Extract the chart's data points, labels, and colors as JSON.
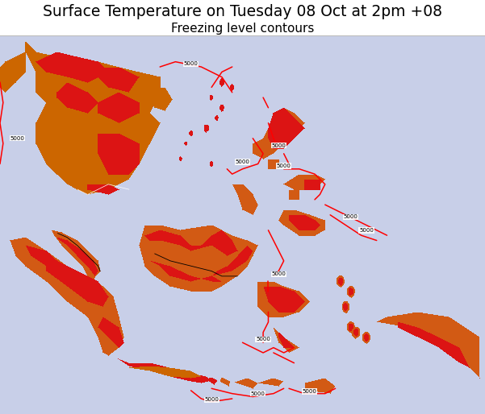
{
  "title": "Surface Temperature on Tuesday 08 Oct at 2pm +08",
  "subtitle": "Freezing level contours",
  "title_fontsize": 13.5,
  "subtitle_fontsize": 11,
  "header_bg": "#ffffff",
  "header_border": "#cccccc",
  "fig_width": 6.01,
  "fig_height": 5.14,
  "dpi": 100,
  "map_bg": "#c8cfe8",
  "map_extent_lon": [
    94.5,
    141.5
  ],
  "map_extent_lat": [
    -11.5,
    25.5
  ]
}
